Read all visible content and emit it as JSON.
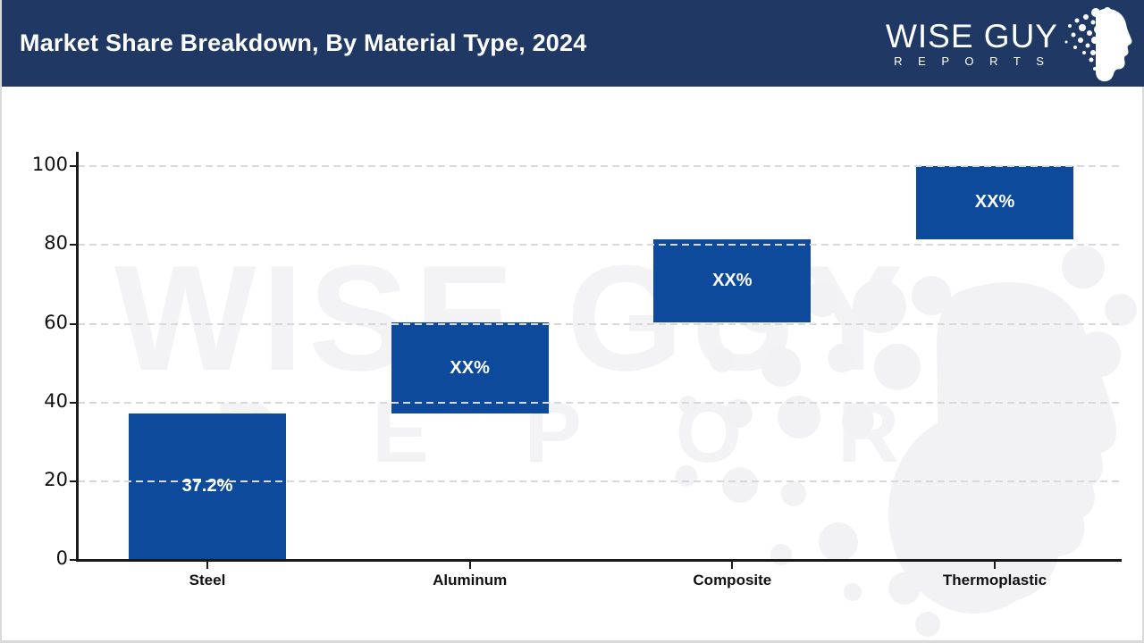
{
  "header": {
    "title": "Market Share Breakdown, By Material Type, 2024",
    "bg_color": "#1f3864",
    "logo": {
      "line1": "WISE GUY",
      "line2": "R E P O R T S"
    }
  },
  "watermark": {
    "line1": "WISE GUY",
    "line2": "R E P O R T S"
  },
  "chart_data": {
    "type": "bar",
    "subtype": "waterfall",
    "title": "Market Share Breakdown, By Material Type, 2024",
    "categories": [
      "Steel",
      "Aluminum",
      "Composite",
      "Thermoplastic"
    ],
    "segments": [
      {
        "category": "Steel",
        "start": 0,
        "end": 37.2,
        "label": "37.2%"
      },
      {
        "category": "Aluminum",
        "start": 37.2,
        "end": 60.4,
        "label": "XX%"
      },
      {
        "category": "Composite",
        "start": 60.4,
        "end": 81.4,
        "label": "XX%"
      },
      {
        "category": "Thermoplastic",
        "start": 81.4,
        "end": 100,
        "label": "XX%"
      }
    ],
    "ylim": [
      0,
      100
    ],
    "yticks": [
      0,
      20,
      40,
      60,
      80,
      100
    ],
    "xlabel": "",
    "ylabel": "",
    "grid": "horizontal-dashed-over-bars",
    "legend": "none",
    "bar_color": "#0d4a9c",
    "bar_label_color": "#ffffff",
    "axis_color": "#1a1a1a",
    "grid_color": "#d9d9d9"
  }
}
